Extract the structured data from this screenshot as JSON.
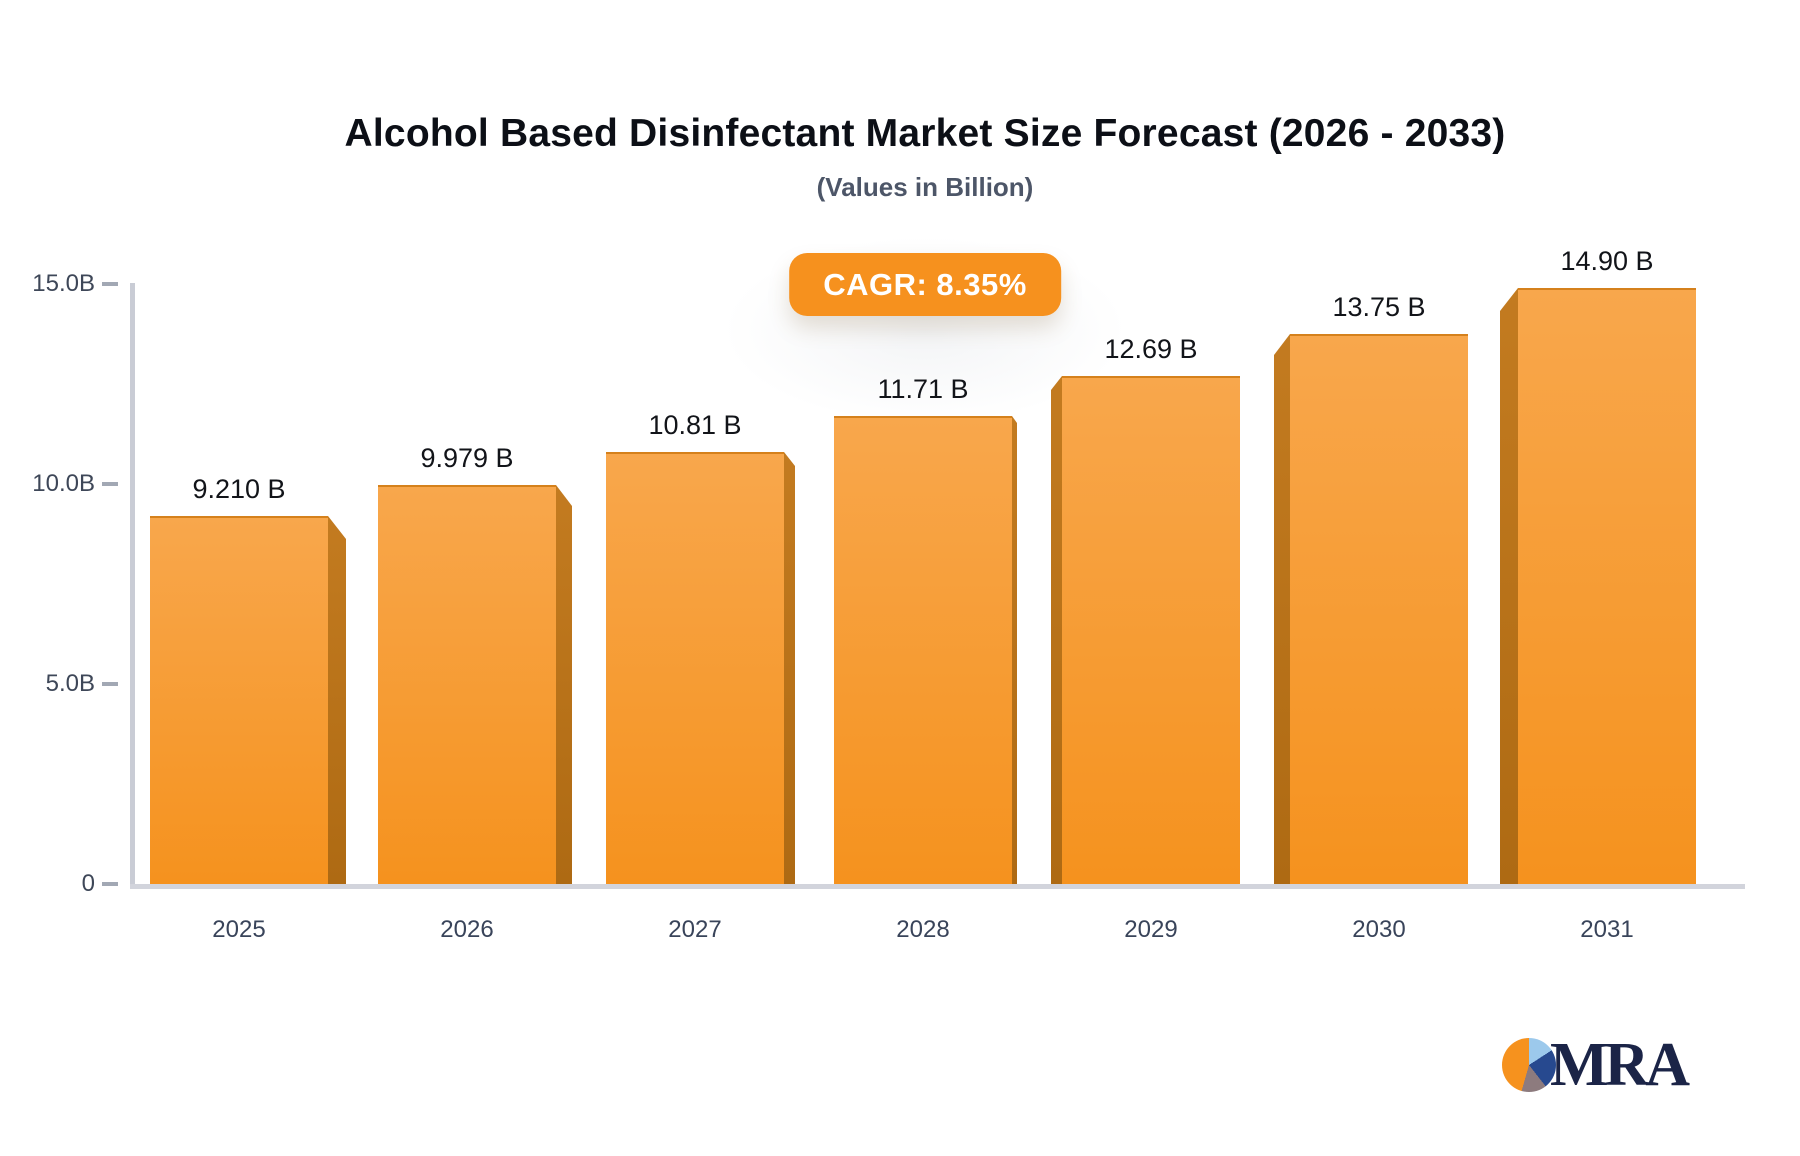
{
  "title": "Alcohol Based Disinfectant Market Size Forecast (2026 - 2033)",
  "subtitle": "(Values in Billion)",
  "cagr_badge": "CAGR: 8.35%",
  "logo": {
    "text": "MRA"
  },
  "colors": {
    "bar_top": "#F8A74C",
    "bar_bottom": "#F5921E",
    "bar_side_light": "#C37B20",
    "bar_side_dark": "#AE6A13",
    "badge_bg": "#F6911E",
    "y_axis_line": "#C9CCD5",
    "x_axis_line": "#D2D4DC",
    "tick": "#A2A8B4",
    "title_text": "#0C0F16",
    "subtitle_text": "#4D5668",
    "value_label_text": "#121419",
    "axis_label_text": "#3E4758",
    "year_label_text": "#39445A",
    "logo_navy": "#1B2447",
    "logo_orange": "#F6921E",
    "logo_lightblue": "#9CC9EC",
    "logo_blue": "#27498F"
  },
  "chart_data": {
    "type": "bar",
    "categories": [
      "2025",
      "2026",
      "2027",
      "2028",
      "2029",
      "2030",
      "2031"
    ],
    "values": [
      9.21,
      9.979,
      10.81,
      11.71,
      12.69,
      13.75,
      14.9
    ],
    "value_labels": [
      "9.210 B",
      "9.979 B",
      "10.81 B",
      "11.71 B",
      "12.69 B",
      "13.75 B",
      "14.90 B"
    ],
    "title": "Alcohol Based Disinfectant Market Size Forecast (2026 - 2033)",
    "subtitle": "(Values in Billion)",
    "annotation": "CAGR: 8.35%",
    "xlabel": "",
    "ylabel": "",
    "ylim": [
      0,
      15
    ],
    "yticks": [
      {
        "value": 0,
        "label": "0"
      },
      {
        "value": 5,
        "label": "5.0B"
      },
      {
        "value": 10,
        "label": "10.0B"
      },
      {
        "value": 15,
        "label": "15.0B"
      }
    ],
    "grid": false,
    "legend": false,
    "bar_style": "3d-orange"
  }
}
